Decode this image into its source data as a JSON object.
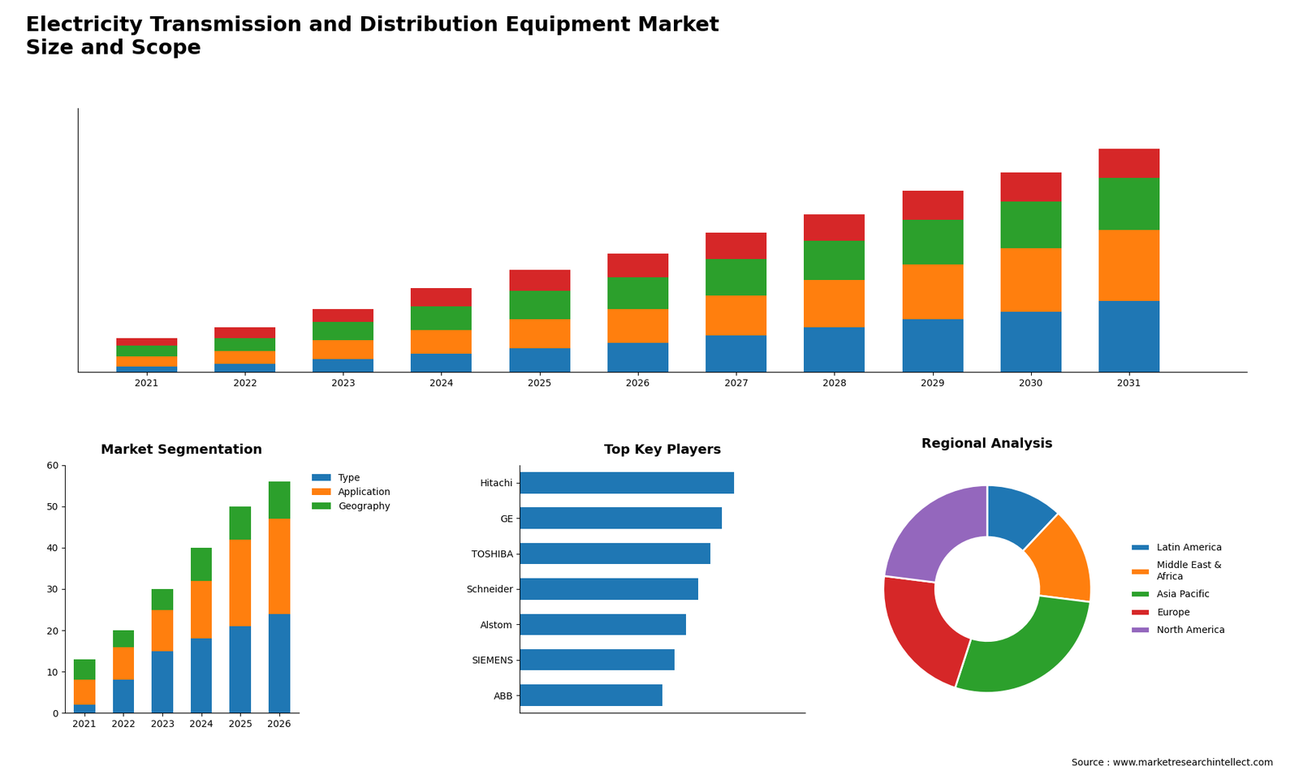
{
  "title": "Electricity Transmission and Distribution Equipment Market\nSize and Scope",
  "source": "Source : www.marketresearchintellect.com",
  "chart_data": [
    {
      "type": "bar",
      "stacked": true,
      "x": [
        2021,
        2022,
        2023,
        2024,
        2025,
        2026,
        2027,
        2028,
        2029,
        2030,
        2031
      ],
      "series": [
        {
          "values": [
            2,
            3,
            5,
            7,
            9,
            11,
            14,
            17,
            20,
            23,
            27
          ]
        },
        {
          "values": [
            4,
            5,
            7,
            9,
            11,
            13,
            15,
            18,
            21,
            24,
            27
          ]
        },
        {
          "values": [
            4,
            5,
            7,
            9,
            11,
            12,
            14,
            15,
            17,
            18,
            20
          ]
        },
        {
          "values": [
            3,
            4,
            5,
            7,
            8,
            9,
            10,
            10,
            11,
            11,
            11
          ]
        }
      ],
      "xlim": [
        2020.3,
        2032.2
      ],
      "xticks": [
        2021,
        2022,
        2023,
        2024,
        2025,
        2026,
        2027,
        2028,
        2029,
        2030,
        2031
      ],
      "ylim": [
        0,
        100.3
      ],
      "tick_labels": "x"
    },
    {
      "type": "bar",
      "stacked": true,
      "title": "Market Segmentation",
      "x": [
        2021,
        2022,
        2023,
        2024,
        2025,
        2026
      ],
      "series": [
        {
          "name": "Type",
          "values": [
            2,
            8,
            15,
            18,
            21,
            24
          ]
        },
        {
          "name": "Application",
          "values": [
            6,
            8,
            10,
            14,
            21,
            23
          ]
        },
        {
          "name": "Geography",
          "values": [
            5,
            4,
            5,
            8,
            8,
            9
          ]
        }
      ],
      "xlim": [
        2020.5,
        2026.5
      ],
      "xticks": [
        2021,
        2022,
        2023,
        2024,
        2025,
        2026
      ],
      "ylim": [
        0,
        60
      ],
      "yticks": [
        0,
        10,
        20,
        30,
        40,
        50,
        60
      ],
      "legend": "upper left"
    },
    {
      "type": "bar",
      "orientation": "horizontal",
      "title": "Top Key Players",
      "categories": [
        "Hitachi",
        "GE",
        "TOSHIBA",
        "Schneider",
        "Alstom",
        "SIEMENS",
        "ABB"
      ],
      "values": [
        9,
        8.5,
        8,
        7.5,
        7,
        6.5,
        6
      ],
      "xlim": [
        0,
        12
      ],
      "tick_labels": "y"
    },
    {
      "type": "pie",
      "title": "Regional Analysis",
      "categories": [
        "Latin America",
        "Middle East &\nAfrica",
        "Asia Pacific",
        "Europe",
        "North America"
      ],
      "values": [
        12,
        15,
        28,
        22,
        23
      ],
      "legend": "center left"
    }
  ]
}
